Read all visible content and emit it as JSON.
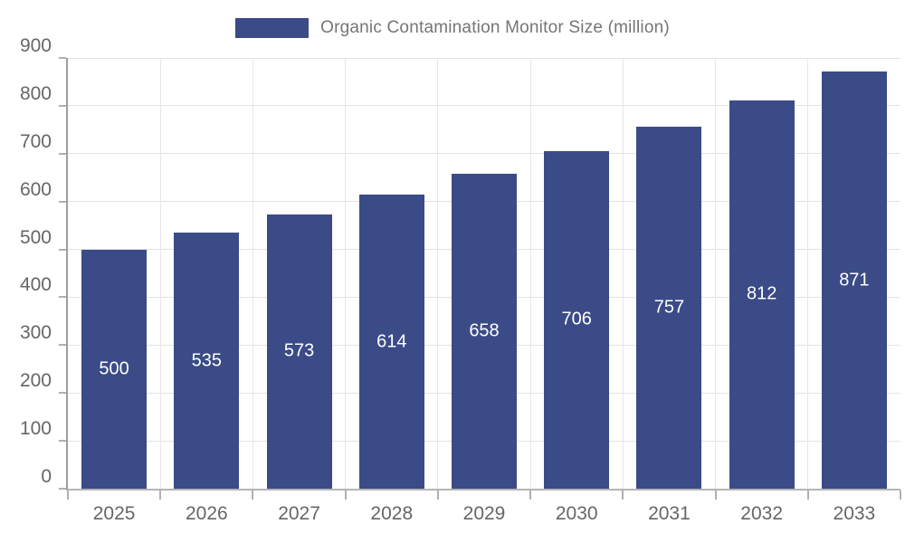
{
  "chart_data": {
    "type": "bar",
    "title": "Organic Contamination Monitor Size (million)",
    "categories": [
      "2025",
      "2026",
      "2027",
      "2028",
      "2029",
      "2030",
      "2031",
      "2032",
      "2033"
    ],
    "values": [
      500,
      535,
      573,
      614,
      658,
      706,
      757,
      812,
      871
    ],
    "xlabel": "",
    "ylabel": "",
    "ylim": [
      0,
      900
    ],
    "ytick_step": 100,
    "grid": true,
    "legend_position": "top-center",
    "value_labels": "inside-center",
    "colors": {
      "bar": "#3a4b87",
      "value_label": "#ffffff",
      "grid": "#e3e3e3",
      "axis": "#a6a6a6",
      "tick": "#b0b0b0",
      "tick_label": "#666666",
      "legend_text": "#757575"
    }
  }
}
